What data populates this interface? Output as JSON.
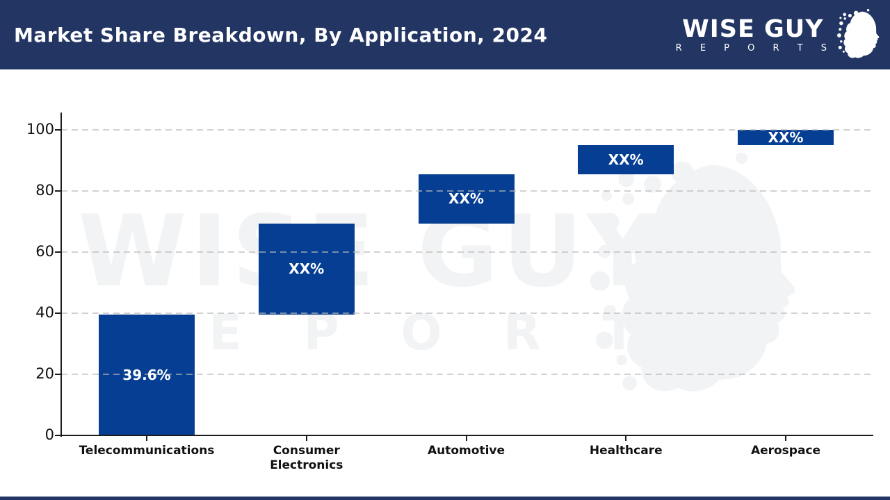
{
  "header": {
    "title": "Market Share Breakdown, By Application, 2024",
    "logo": {
      "line1": "WISE GUY",
      "line2": "R E P O R T S"
    }
  },
  "watermark": {
    "line1": "WISE GUY",
    "line2": "R E P O R T S"
  },
  "colors": {
    "header_bg": "#233563",
    "bar": "#053e92",
    "axis": "#1c1c1c",
    "gridline": "#d9d9d9",
    "watermark": "#f2f3f5",
    "bar_label_text": "#ffffff",
    "tick_text": "#111111"
  },
  "chart_data": {
    "type": "bar",
    "subtype": "waterfall",
    "title": "Market Share Breakdown, By Application, 2024",
    "categories": [
      "Telecommunications",
      "Consumer\nElectronics",
      "Automotive",
      "Healthcare",
      "Aerospace"
    ],
    "segments": [
      {
        "category": "Telecommunications",
        "start": 0,
        "end": 39.6,
        "value": 39.6,
        "label": "39.6%"
      },
      {
        "category": "Consumer Electronics",
        "start": 39.6,
        "end": 69.3,
        "value": 29.7,
        "label": "XX%"
      },
      {
        "category": "Automotive",
        "start": 69.3,
        "end": 85.5,
        "value": 16.2,
        "label": "XX%"
      },
      {
        "category": "Healthcare",
        "start": 85.5,
        "end": 95.0,
        "value": 9.5,
        "label": "XX%"
      },
      {
        "category": "Aerospace",
        "start": 95.0,
        "end": 100.0,
        "value": 5.0,
        "label": "XX%"
      }
    ],
    "yticks": [
      0,
      20,
      40,
      60,
      80,
      100
    ],
    "ylim": [
      0,
      105
    ],
    "xlabel": "",
    "ylabel": "",
    "grid": "dashed-horizontal",
    "legend": "none"
  }
}
